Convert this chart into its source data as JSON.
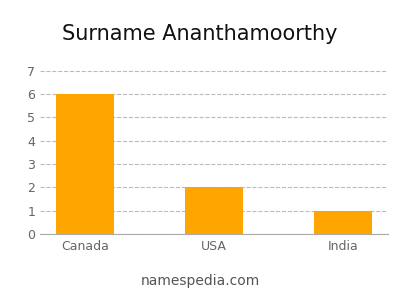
{
  "title": "Surname Ananthamoorthy",
  "categories": [
    "Canada",
    "USA",
    "India"
  ],
  "values": [
    6,
    2,
    1
  ],
  "bar_color": "#FFA500",
  "ylim": [
    0,
    7.2
  ],
  "yticks": [
    0,
    1,
    2,
    3,
    4,
    5,
    6,
    7
  ],
  "watermark": "namespedia.com",
  "background_color": "#ffffff",
  "grid_color": "#bbbbbb",
  "title_fontsize": 15,
  "tick_fontsize": 9,
  "watermark_fontsize": 10
}
